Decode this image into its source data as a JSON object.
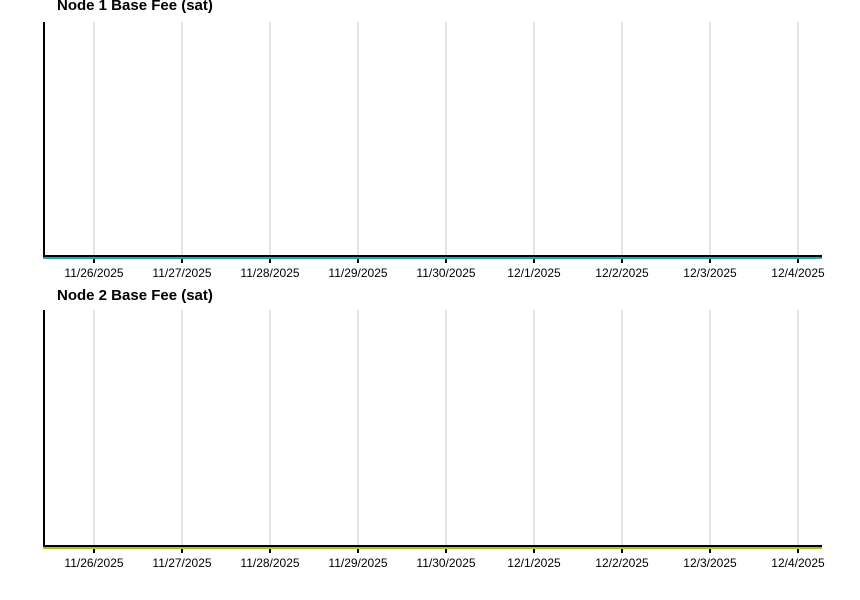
{
  "page": {
    "background_color": "#ffffff",
    "axis_color": "#000000",
    "gridline_color": "#c9c9c9"
  },
  "chart_data": [
    {
      "type": "line",
      "title": "Node 1 Base Fee (sat)",
      "x": [
        "11/26/2025",
        "11/27/2025",
        "11/28/2025",
        "11/29/2025",
        "11/30/2025",
        "12/1/2025",
        "12/2/2025",
        "12/3/2025",
        "12/4/2025"
      ],
      "series": [
        {
          "name": "Node 1 Base Fee",
          "values": [
            0,
            0,
            0,
            0,
            0,
            0,
            0,
            0,
            0
          ]
        }
      ],
      "line_color": "#1fa8b0",
      "xlabel": "",
      "ylabel": "",
      "y_axis_tick_labels": "none",
      "grid": "vertical-only",
      "legend_position": "none"
    },
    {
      "type": "line",
      "title": "Node 2 Base Fee (sat)",
      "x": [
        "11/26/2025",
        "11/27/2025",
        "11/28/2025",
        "11/29/2025",
        "11/30/2025",
        "12/1/2025",
        "12/2/2025",
        "12/3/2025",
        "12/4/2025"
      ],
      "series": [
        {
          "name": "Node 2 Base Fee",
          "values": [
            0,
            0,
            0,
            0,
            0,
            0,
            0,
            0,
            0
          ]
        }
      ],
      "line_color": "#a4c61c",
      "xlabel": "",
      "ylabel": "",
      "y_axis_tick_labels": "none",
      "grid": "vertical-only",
      "legend_position": "none"
    }
  ]
}
